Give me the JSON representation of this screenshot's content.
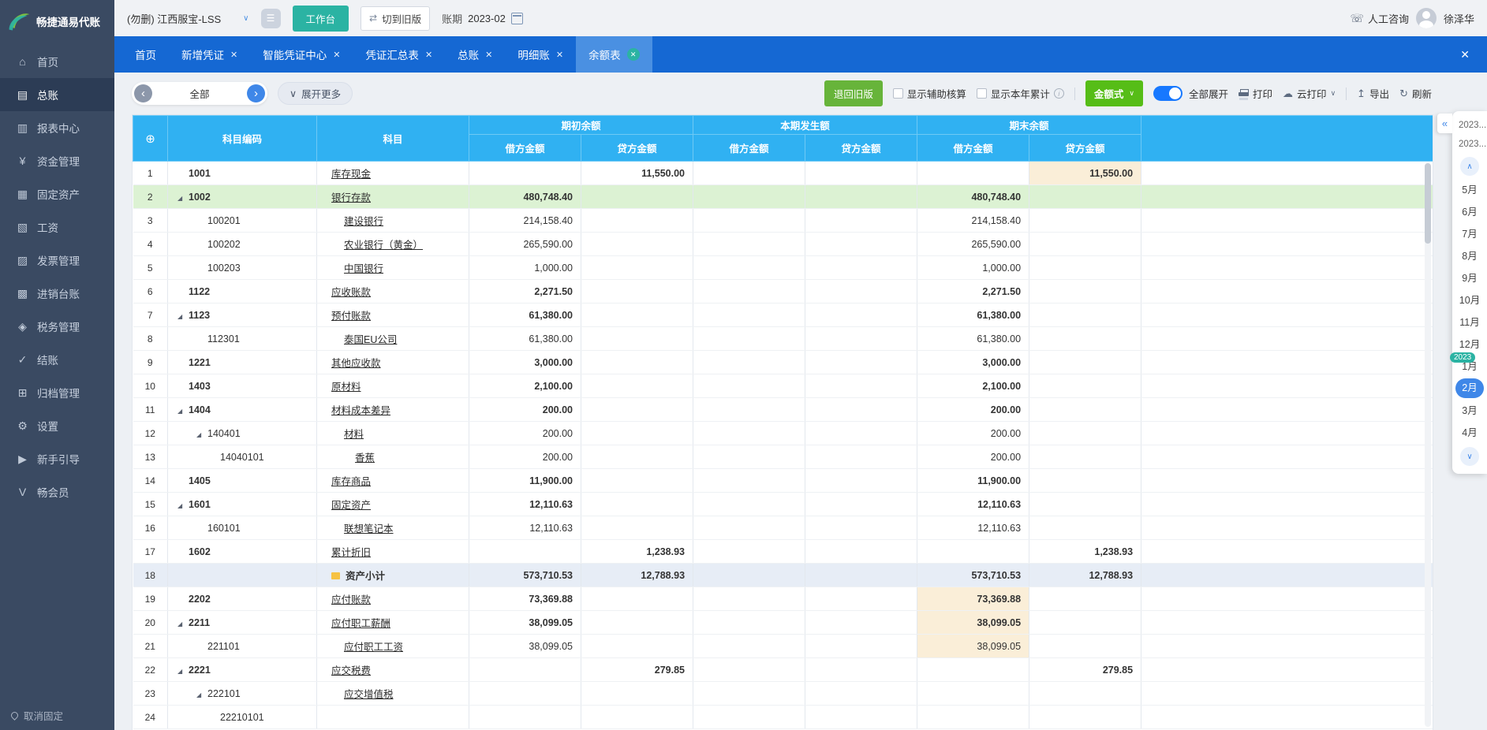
{
  "colors": {
    "sidebar_bg": "#3a4a62",
    "sidebar_active_bg": "#2c3c55",
    "topbar_bg": "#f0f2f5",
    "tabbar_bg": "#1568d3",
    "tab_active_bg": "#4a90e2",
    "teal": "#2bb3a3",
    "green_btn": "#67b43a",
    "lime_btn": "#56bd17",
    "table_header_bg": "#30b1f2",
    "row_green": "#dcf2d3",
    "cell_beige": "#faeed8",
    "subtotal_bg": "#e7edf6",
    "toggle_blue": "#1778ff",
    "month_active_bg": "#3f87e8"
  },
  "app": {
    "name": "畅捷通易代账"
  },
  "topbar": {
    "company": "(勿删) 江西服宝-LSS",
    "workbench": "工作台",
    "switch_old": "切到旧版",
    "period_label": "账期",
    "period_value": "2023-02",
    "consult": "人工咨询",
    "username": "徐泽华"
  },
  "sidebar": {
    "items": [
      {
        "label": "首页",
        "icon": "home-icon"
      },
      {
        "label": "总账",
        "icon": "ledger-icon",
        "active": true
      },
      {
        "label": "报表中心",
        "icon": "report-icon"
      },
      {
        "label": "资金管理",
        "icon": "fund-icon"
      },
      {
        "label": "固定资产",
        "icon": "fixed-asset-icon"
      },
      {
        "label": "工资",
        "icon": "salary-icon"
      },
      {
        "label": "发票管理",
        "icon": "invoice-icon"
      },
      {
        "label": "进销台账",
        "icon": "trade-ledger-icon"
      },
      {
        "label": "税务管理",
        "icon": "tax-icon"
      },
      {
        "label": "结账",
        "icon": "closing-icon"
      },
      {
        "label": "归档管理",
        "icon": "archive-icon"
      },
      {
        "label": "设置",
        "icon": "settings-icon"
      },
      {
        "label": "新手引导",
        "icon": "guide-icon"
      },
      {
        "label": "畅会员",
        "icon": "member-icon"
      }
    ],
    "unpin": "取消固定"
  },
  "tabs": [
    {
      "label": "首页",
      "closable": false
    },
    {
      "label": "新增凭证",
      "closable": true
    },
    {
      "label": "智能凭证中心",
      "closable": true
    },
    {
      "label": "凭证汇总表",
      "closable": true
    },
    {
      "label": "总账",
      "closable": true
    },
    {
      "label": "明细账",
      "closable": true
    },
    {
      "label": "余额表",
      "closable": true,
      "active": true
    }
  ],
  "toolbar": {
    "filter_value": "全部",
    "expand_more": "展开更多",
    "back_to_old": "退回旧版",
    "show_aux": "显示辅助核算",
    "show_ytd": "显示本年累计",
    "amount_style": "金额式",
    "expand_all": "全部展开",
    "print": "打印",
    "cloud_print": "云打印",
    "export": "导出",
    "refresh": "刷新"
  },
  "table": {
    "col_code": "科目编码",
    "col_name": "科目",
    "groups": [
      {
        "label": "期初余额"
      },
      {
        "label": "本期发生额"
      },
      {
        "label": "期末余额"
      }
    ],
    "sub_debit": "借方金额",
    "sub_credit": "贷方金额",
    "rows": [
      {
        "n": "1",
        "code": "1001",
        "lvl": 0,
        "name": "库存现金",
        "bold": true,
        "v": [
          "",
          "11,550.00",
          "",
          "",
          "",
          "11,550.00"
        ],
        "hl": [
          5
        ]
      },
      {
        "n": "2",
        "code": "1002",
        "lvl": 0,
        "tri": true,
        "name": "银行存款",
        "bold": true,
        "style": "green",
        "v": [
          "480,748.40",
          "",
          "",
          "",
          "480,748.40",
          ""
        ]
      },
      {
        "n": "3",
        "code": "100201",
        "lvl": 1,
        "name": "建设银行",
        "v": [
          "214,158.40",
          "",
          "",
          "",
          "214,158.40",
          ""
        ]
      },
      {
        "n": "4",
        "code": "100202",
        "lvl": 1,
        "name": "农业银行（黄金）",
        "v": [
          "265,590.00",
          "",
          "",
          "",
          "265,590.00",
          ""
        ]
      },
      {
        "n": "5",
        "code": "100203",
        "lvl": 1,
        "name": "中国银行",
        "v": [
          "1,000.00",
          "",
          "",
          "",
          "1,000.00",
          ""
        ]
      },
      {
        "n": "6",
        "code": "1122",
        "lvl": 0,
        "name": "应收账款",
        "bold": true,
        "v": [
          "2,271.50",
          "",
          "",
          "",
          "2,271.50",
          ""
        ]
      },
      {
        "n": "7",
        "code": "1123",
        "lvl": 0,
        "tri": true,
        "name": "预付账款",
        "bold": true,
        "v": [
          "61,380.00",
          "",
          "",
          "",
          "61,380.00",
          ""
        ]
      },
      {
        "n": "8",
        "code": "112301",
        "lvl": 1,
        "name": "泰国EU公司",
        "v": [
          "61,380.00",
          "",
          "",
          "",
          "61,380.00",
          ""
        ]
      },
      {
        "n": "9",
        "code": "1221",
        "lvl": 0,
        "name": "其他应收款",
        "bold": true,
        "v": [
          "3,000.00",
          "",
          "",
          "",
          "3,000.00",
          ""
        ]
      },
      {
        "n": "10",
        "code": "1403",
        "lvl": 0,
        "name": "原材料",
        "bold": true,
        "v": [
          "2,100.00",
          "",
          "",
          "",
          "2,100.00",
          ""
        ]
      },
      {
        "n": "11",
        "code": "1404",
        "lvl": 0,
        "tri": true,
        "name": "材料成本差异",
        "bold": true,
        "v": [
          "200.00",
          "",
          "",
          "",
          "200.00",
          ""
        ]
      },
      {
        "n": "12",
        "code": "140401",
        "lvl": 1,
        "tri": true,
        "name": "材料",
        "v": [
          "200.00",
          "",
          "",
          "",
          "200.00",
          ""
        ]
      },
      {
        "n": "13",
        "code": "14040101",
        "lvl": 2,
        "name": "香蕉",
        "v": [
          "200.00",
          "",
          "",
          "",
          "200.00",
          ""
        ]
      },
      {
        "n": "14",
        "code": "1405",
        "lvl": 0,
        "name": "库存商品",
        "bold": true,
        "v": [
          "11,900.00",
          "",
          "",
          "",
          "11,900.00",
          ""
        ]
      },
      {
        "n": "15",
        "code": "1601",
        "lvl": 0,
        "tri": true,
        "name": "固定资产",
        "bold": true,
        "v": [
          "12,110.63",
          "",
          "",
          "",
          "12,110.63",
          ""
        ]
      },
      {
        "n": "16",
        "code": "160101",
        "lvl": 1,
        "name": "联想笔记本",
        "v": [
          "12,110.63",
          "",
          "",
          "",
          "12,110.63",
          ""
        ]
      },
      {
        "n": "17",
        "code": "1602",
        "lvl": 0,
        "name": "累计折旧",
        "bold": true,
        "v": [
          "",
          "1,238.93",
          "",
          "",
          "",
          "1,238.93"
        ]
      },
      {
        "n": "18",
        "code": "",
        "name": "资产小计",
        "bold": true,
        "style": "subtotal",
        "v": [
          "573,710.53",
          "12,788.93",
          "",
          "",
          "573,710.53",
          "12,788.93"
        ]
      },
      {
        "n": "19",
        "code": "2202",
        "lvl": 0,
        "name": "应付账款",
        "bold": true,
        "v": [
          "73,369.88",
          "",
          "",
          "",
          "73,369.88",
          ""
        ],
        "hl": [
          4
        ]
      },
      {
        "n": "20",
        "code": "2211",
        "lvl": 0,
        "tri": true,
        "name": "应付职工薪酬",
        "bold": true,
        "v": [
          "38,099.05",
          "",
          "",
          "",
          "38,099.05",
          ""
        ],
        "hl": [
          4
        ]
      },
      {
        "n": "21",
        "code": "221101",
        "lvl": 1,
        "name": "应付职工工资",
        "v": [
          "38,099.05",
          "",
          "",
          "",
          "38,099.05",
          ""
        ],
        "hl": [
          4
        ]
      },
      {
        "n": "22",
        "code": "2221",
        "lvl": 0,
        "tri": true,
        "name": "应交税费",
        "bold": true,
        "v": [
          "",
          "279.85",
          "",
          "",
          "",
          "279.85"
        ]
      },
      {
        "n": "23",
        "code": "222101",
        "lvl": 1,
        "tri": true,
        "name": "应交增值税",
        "v": [
          "",
          "",
          "",
          "",
          "",
          ""
        ]
      },
      {
        "n": "24",
        "code": "22210101",
        "lvl": 2,
        "name": "",
        "v": [
          "",
          "",
          "",
          "",
          "",
          ""
        ]
      }
    ]
  },
  "period_panel": {
    "years": [
      "2023...",
      "2023..."
    ],
    "year_badge": "2023",
    "months": [
      "5月",
      "6月",
      "7月",
      "8月",
      "9月",
      "10月",
      "11月",
      "12月",
      "1月",
      "2月",
      "3月",
      "4月"
    ],
    "active_month": "2月"
  }
}
